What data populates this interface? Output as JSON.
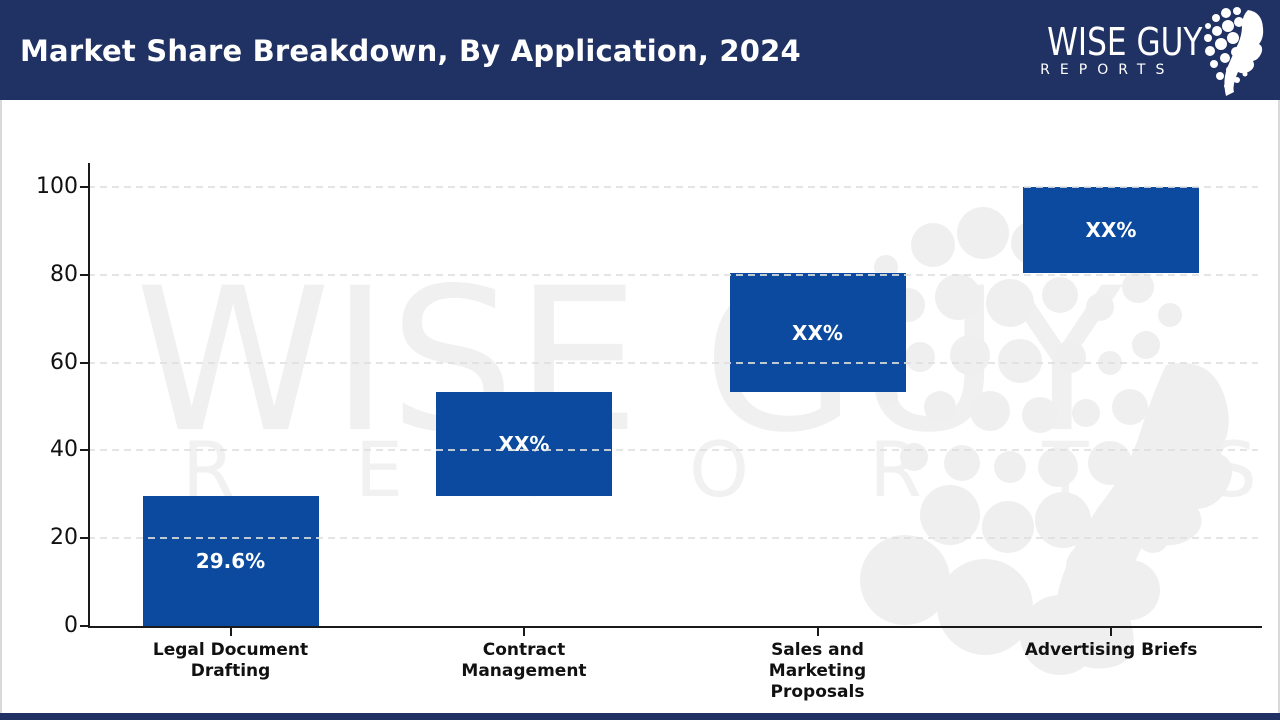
{
  "header": {
    "title": "Market Share Breakdown, By Application, 2024",
    "logo_line1": "WISE GUY",
    "logo_line2": "REPORTS",
    "bg_color": "#203263"
  },
  "watermark": {
    "line1": "WISE GUY",
    "line2": "R E P O R T S"
  },
  "footer": {
    "bg_color": "#203263"
  },
  "chart_data": {
    "type": "bar",
    "subtype": "waterfall",
    "title": "Market Share Breakdown, By Application, 2024",
    "categories": [
      "Legal Document Drafting",
      "Contract Management",
      "Sales and Marketing Proposals",
      "Advertising Briefs"
    ],
    "category_lines": [
      [
        "Legal Document",
        "Drafting"
      ],
      [
        "Contract",
        "Management"
      ],
      [
        "Sales and",
        "Marketing",
        "Proposals"
      ],
      [
        "Advertising Briefs"
      ]
    ],
    "series": [
      {
        "name": "Market Share (%)",
        "starts": [
          0,
          29.6,
          53.4,
          80.3
        ],
        "ends": [
          29.6,
          53.4,
          80.3,
          100
        ]
      }
    ],
    "bar_labels": [
      "29.6%",
      "XX%",
      "XX%",
      "XX%"
    ],
    "bar_color": "#0b4a9e",
    "xlabel": "",
    "ylabel": "",
    "ylim": [
      0,
      100
    ],
    "yticks": [
      0,
      20,
      40,
      60,
      80,
      100
    ],
    "grid": "horizontal-dashed",
    "legend": "none"
  }
}
